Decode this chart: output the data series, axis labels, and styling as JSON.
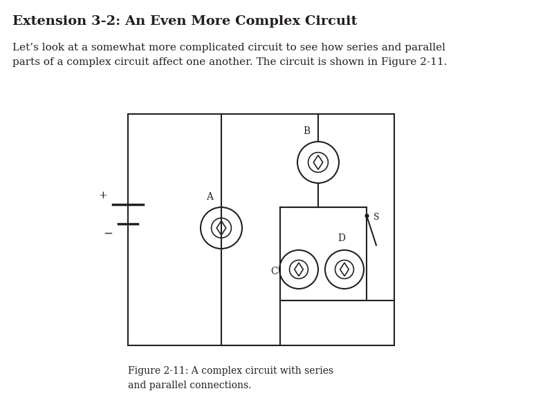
{
  "title": "Extension 3-2: An Even More Complex Circuit",
  "body_text": "Let’s look at a somewhat more complicated circuit to see how series and parallel\nparts of a complex circuit affect one another. The circuit is shown in Figure 2-11.",
  "caption": "Figure 2-11: A complex circuit with series\nand parallel connections.",
  "bg_color": "#ffffff",
  "line_color": "#231f20",
  "title_fontsize": 14,
  "body_fontsize": 11,
  "caption_fontsize": 10
}
